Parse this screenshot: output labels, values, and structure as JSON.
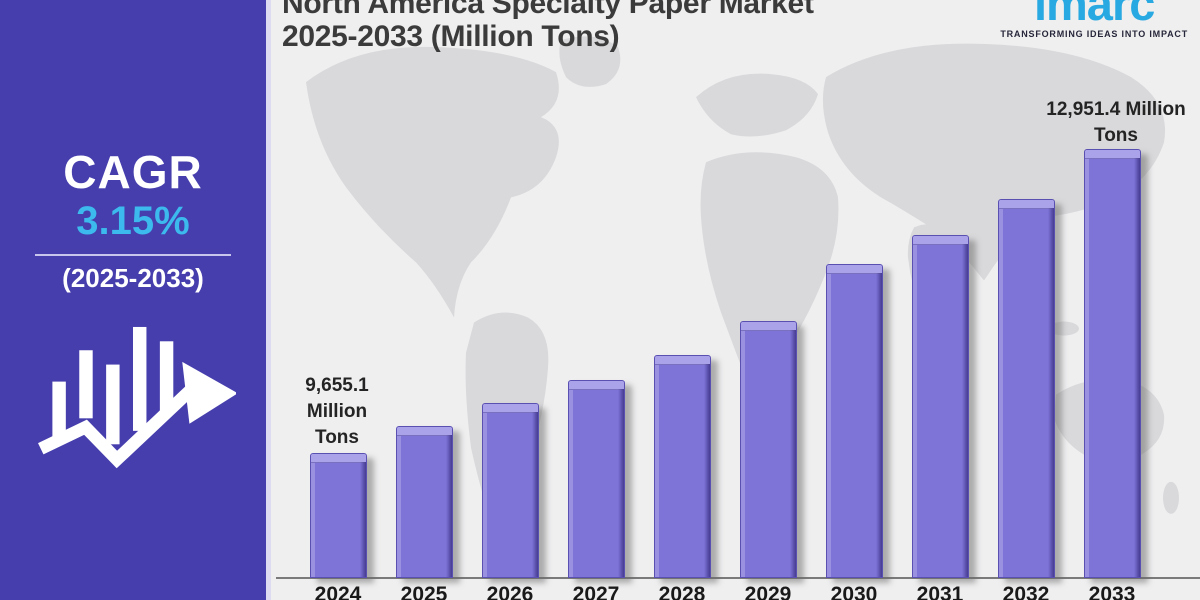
{
  "title": {
    "line1": "North America Specialty Paper Market",
    "line2": "2025-2033 (Million Tons)"
  },
  "logo": {
    "name": "imarc",
    "tagline": "TRANSFORMING IDEAS INTO IMPACT"
  },
  "sidebar": {
    "cagr_label": "CAGR",
    "cagr_value": "3.15%",
    "period": "(2025-2033)"
  },
  "chart_data": {
    "type": "bar",
    "title": "North America Specialty Paper Market 2025-2033 (Million Tons)",
    "categories": [
      "2024",
      "2025",
      "2026",
      "2027",
      "2028",
      "2029",
      "2030",
      "2031",
      "2032",
      "2033"
    ],
    "values": [
      9655.1,
      9948,
      10197,
      10447,
      10718,
      11086,
      11704,
      12019,
      12409,
      12951.4
    ],
    "labeled_points": [
      {
        "category": "2024",
        "label": "9,655.1\nMillion\nTons"
      },
      {
        "category": "2033",
        "label": "12,951.4 Million\nTons"
      }
    ],
    "ylabel": "Million Tons",
    "ylim": [
      8300,
      13100
    ],
    "grid": false,
    "legend": false,
    "value_axis_visible": false
  },
  "colors": {
    "sidebar_bg": "#463ead",
    "accent_blue": "#3cb9ed",
    "logo_blue": "#29a9e1",
    "bar_fill": "#7e74d8",
    "bar_top_bevel": "#aba3ea",
    "bar_dark_edge": "#463c92",
    "chart_bg": "#efeff0",
    "map_gray": "#d9d9db",
    "title_text": "#3b3b3b"
  }
}
